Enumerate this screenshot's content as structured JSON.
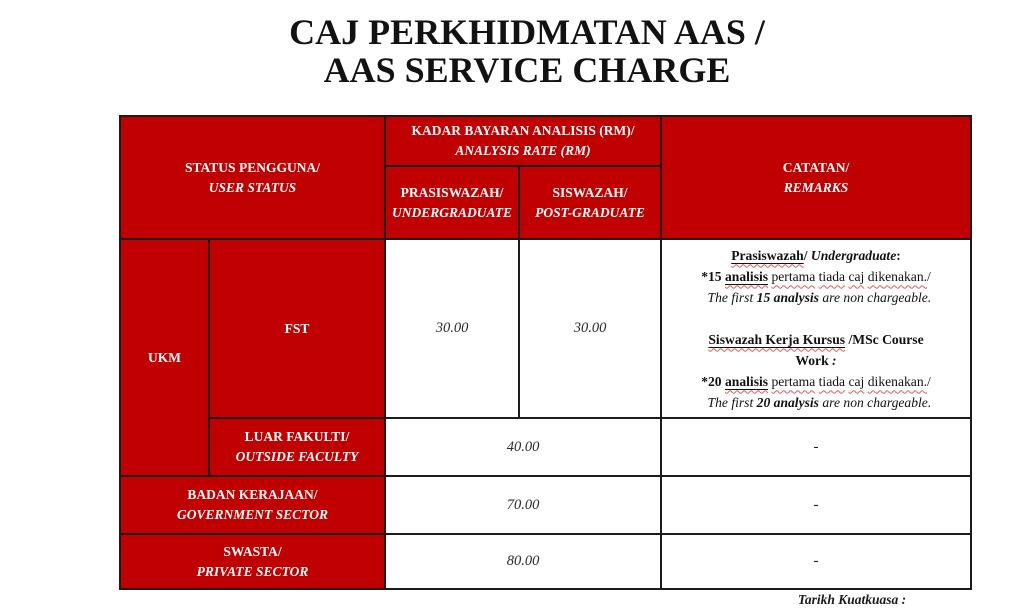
{
  "title": {
    "line1": "CAJ PERKHIDMATAN AAS /",
    "line2": "AAS SERVICE CHARGE"
  },
  "colors": {
    "header_red": "#C00000",
    "border_black": "#1b1b1b",
    "header_text": "#FFFFFF",
    "spellcheck_wavy_red": "#DD5C5C"
  },
  "table": {
    "headers": {
      "status": {
        "line1": "STATUS PENGGUNA/",
        "line2": "USER STATUS"
      },
      "rate": {
        "line1": "KADAR BAYARAN ANALISIS (RM)/",
        "line2": "ANALYSIS RATE (RM)"
      },
      "undergraduate": {
        "line1": "PRASISWAZAH/",
        "line2": "UNDERGRADUATE"
      },
      "postgraduate": {
        "line1": "SISWAZAH/",
        "line2": "POST-GRADUATE"
      },
      "remarks": {
        "line1": "CATATAN/",
        "line2": "REMARKS"
      }
    },
    "rows": {
      "ukm": {
        "label": "UKM"
      },
      "fst": {
        "label": "FST",
        "undergraduate_rate": "30.00",
        "postgraduate_rate": "30.00"
      },
      "outside_faculty": {
        "line1": "LUAR FAKULTI/",
        "line2": "OUTSIDE FACULTY",
        "rate": "40.00",
        "remark": "-"
      },
      "government": {
        "line1": "BADAN KERAJAAN/",
        "line2": "GOVERNMENT SECTOR",
        "rate": "70.00",
        "remark": "-"
      },
      "private": {
        "line1": "SWASTA/",
        "line2": "PRIVATE SECTOR",
        "rate": "80.00",
        "remark": "-"
      }
    },
    "fst_remarks": {
      "lines": [
        [
          {
            "t": "Prasiswazah",
            "b": 1,
            "u": 1,
            "w": 1
          },
          {
            "t": "/ ",
            "b": 1
          },
          {
            "t": "Undergraduate",
            "b": 1,
            "i": 1
          },
          {
            "t": ":",
            "b": 1
          }
        ],
        [
          {
            "t": "*15 ",
            "b": 1
          },
          {
            "t": "analisis",
            "b": 1,
            "u": 1,
            "w": 1
          },
          {
            "t": " ",
            "b": 1
          },
          {
            "t": "pertama",
            "w": 1
          },
          {
            "t": " "
          },
          {
            "t": "tiada",
            "w": 1
          },
          {
            "t": " "
          },
          {
            "t": "caj",
            "w": 1
          },
          {
            "t": " "
          },
          {
            "t": "dikenakan.",
            "w": 1
          },
          {
            "t": "/"
          }
        ],
        [
          {
            "t": "  The first ",
            "i": 1
          },
          {
            "t": "15 analysis",
            "b": 1,
            "i": 1
          },
          {
            "t": " are non chargeable.",
            "i": 1
          }
        ],
        [],
        [
          {
            "t": "Siswazah Kerja Kursus",
            "b": 1,
            "u": 1,
            "w": 1
          },
          {
            "t": " /MSc Course",
            "b": 1
          }
        ],
        [
          {
            "t": "Work ",
            "b": 1
          },
          {
            "t": ":",
            "b": 1,
            "i": 1
          }
        ],
        [
          {
            "t": "*20 ",
            "b": 1
          },
          {
            "t": "analisis",
            "b": 1,
            "u": 1,
            "w": 1
          },
          {
            "t": " ",
            "b": 1
          },
          {
            "t": "pertama",
            "w": 1
          },
          {
            "t": " "
          },
          {
            "t": "tiada",
            "w": 1
          },
          {
            "t": " "
          },
          {
            "t": "caj",
            "w": 1
          },
          {
            "t": " "
          },
          {
            "t": "dikenakan.",
            "w": 1
          },
          {
            "t": "/"
          }
        ],
        [
          {
            "t": "  The first ",
            "i": 1
          },
          {
            "t": "20 analysis",
            "b": 1,
            "i": 1
          },
          {
            "t": " are non chargeable.",
            "i": 1
          }
        ]
      ]
    }
  },
  "footer": {
    "effective_date_label": "Tarikh Kuatkuasa :"
  }
}
